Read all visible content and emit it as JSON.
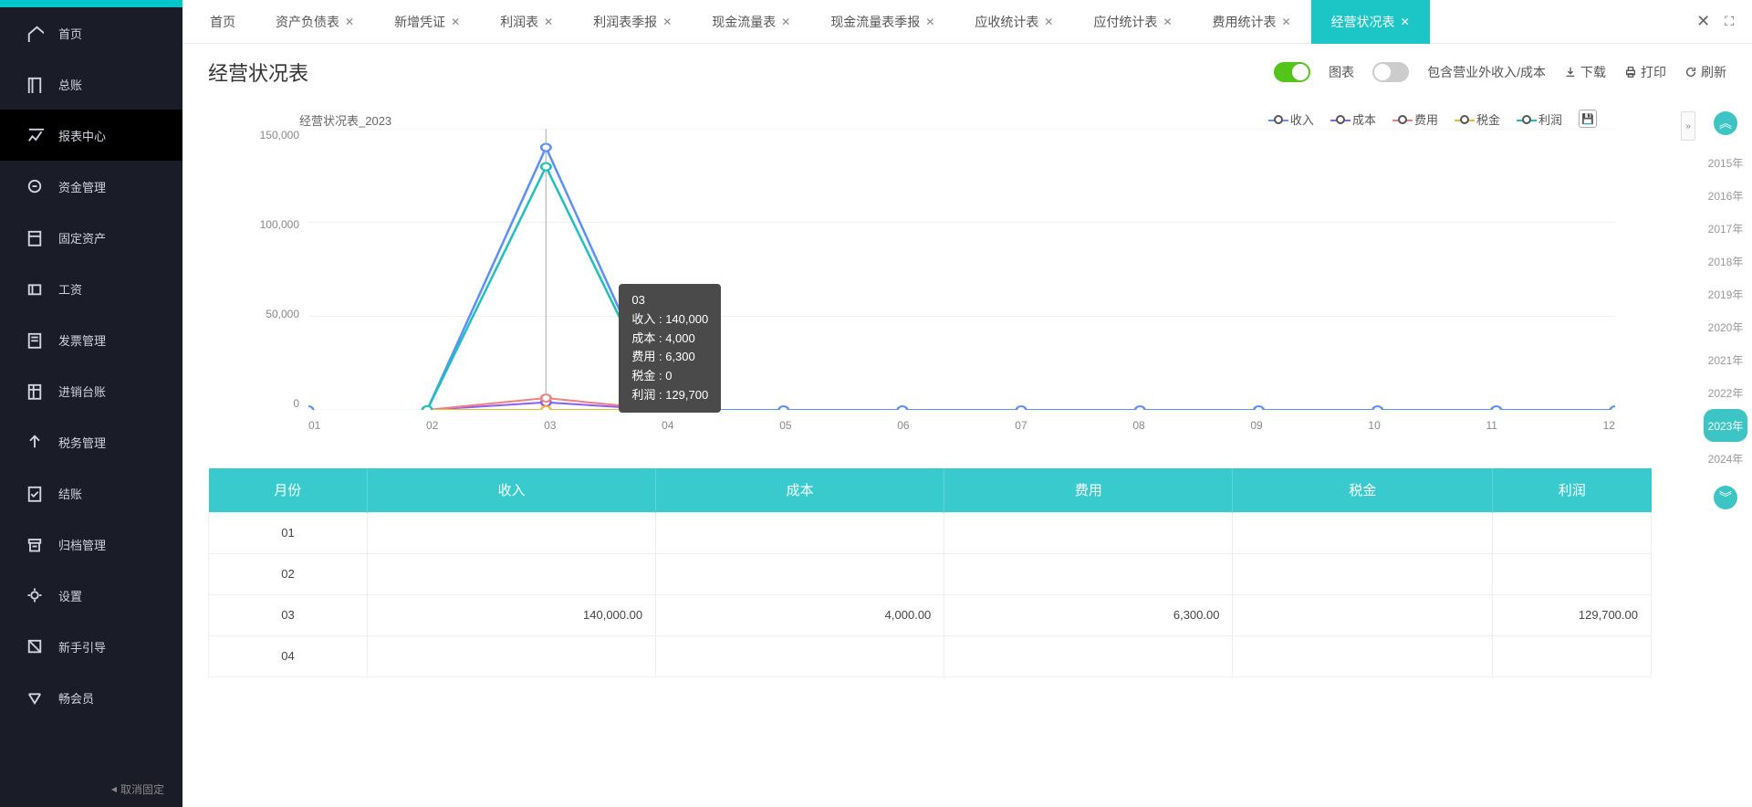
{
  "sidebar": {
    "items": [
      {
        "label": "首页",
        "icon": "home"
      },
      {
        "label": "总账",
        "icon": "ledger"
      },
      {
        "label": "报表中心",
        "icon": "report",
        "active": true
      },
      {
        "label": "资金管理",
        "icon": "money"
      },
      {
        "label": "固定资产",
        "icon": "asset"
      },
      {
        "label": "工资",
        "icon": "salary"
      },
      {
        "label": "发票管理",
        "icon": "invoice"
      },
      {
        "label": "进销台账",
        "icon": "stock"
      },
      {
        "label": "税务管理",
        "icon": "tax"
      },
      {
        "label": "结账",
        "icon": "close"
      },
      {
        "label": "归档管理",
        "icon": "archive"
      },
      {
        "label": "设置",
        "icon": "gear"
      },
      {
        "label": "新手引导",
        "icon": "guide"
      },
      {
        "label": "畅会员",
        "icon": "vip"
      }
    ],
    "footer": "取消固定"
  },
  "tabs": [
    {
      "label": "首页",
      "closable": false
    },
    {
      "label": "资产负债表",
      "closable": true
    },
    {
      "label": "新增凭证",
      "closable": true
    },
    {
      "label": "利润表",
      "closable": true
    },
    {
      "label": "利润表季报",
      "closable": true
    },
    {
      "label": "现金流量表",
      "closable": true
    },
    {
      "label": "现金流量表季报",
      "closable": true
    },
    {
      "label": "应收统计表",
      "closable": true
    },
    {
      "label": "应付统计表",
      "closable": true
    },
    {
      "label": "费用统计表",
      "closable": true
    },
    {
      "label": "经营状况表",
      "closable": true,
      "active": true
    }
  ],
  "page": {
    "title": "经营状况表",
    "toggle1_label": "图表",
    "toggle1_on": true,
    "toggle2_label": "包含营业外收入/成本",
    "toggle2_on": false,
    "download": "下载",
    "print": "打印",
    "refresh": "刷新"
  },
  "chart": {
    "title": "经营状况表_2023",
    "type": "line",
    "x_categories": [
      "01",
      "02",
      "03",
      "04",
      "05",
      "06",
      "07",
      "08",
      "09",
      "10",
      "11",
      "12"
    ],
    "y_ticks": [
      0,
      50000,
      100000,
      150000
    ],
    "y_labels": [
      "0",
      "50,000",
      "100,000",
      "150,000"
    ],
    "ylim": [
      0,
      150000
    ],
    "series": [
      {
        "name": "收入",
        "color": "#5b8ff9",
        "values": [
          null,
          0,
          140000,
          0,
          0,
          0,
          0,
          0,
          0,
          0,
          0,
          0
        ]
      },
      {
        "name": "成本",
        "color": "#8b5cf6",
        "values": [
          null,
          0,
          4000,
          0,
          null,
          null,
          null,
          null,
          null,
          null,
          null,
          null
        ]
      },
      {
        "name": "费用",
        "color": "#f08080",
        "values": [
          null,
          0,
          6300,
          0,
          null,
          null,
          null,
          null,
          null,
          null,
          null,
          null
        ]
      },
      {
        "name": "税金",
        "color": "#f5b72f",
        "values": [
          null,
          0,
          0,
          0,
          null,
          null,
          null,
          null,
          null,
          null,
          null,
          null
        ]
      },
      {
        "name": "利润",
        "color": "#1dbfbf",
        "values": [
          null,
          0,
          129700,
          0,
          null,
          null,
          null,
          null,
          null,
          null,
          null,
          null
        ]
      }
    ],
    "tooltip": {
      "month": "03",
      "rows": [
        {
          "k": "收入",
          "v": "140,000"
        },
        {
          "k": "成本",
          "v": "4,000"
        },
        {
          "k": "费用",
          "v": "6,300"
        },
        {
          "k": "税金",
          "v": "0"
        },
        {
          "k": "利润",
          "v": "129,700"
        }
      ]
    },
    "grid_color": "#eeeeee",
    "background": "#ffffff",
    "marker": "circle",
    "marker_size": 4,
    "line_width": 2
  },
  "table": {
    "columns": [
      "月份",
      "收入",
      "成本",
      "费用",
      "税金",
      "利润"
    ],
    "rows": [
      [
        "01",
        "",
        "",
        "",
        "",
        ""
      ],
      [
        "02",
        "",
        "",
        "",
        "",
        ""
      ],
      [
        "03",
        "140,000.00",
        "4,000.00",
        "6,300.00",
        "",
        "129,700.00"
      ],
      [
        "04",
        "",
        "",
        "",
        "",
        ""
      ]
    ],
    "column_widths": [
      "11%",
      "20%",
      "20%",
      "20%",
      "18%",
      "18%"
    ]
  },
  "years": {
    "list": [
      "2015年",
      "2016年",
      "2017年",
      "2018年",
      "2019年",
      "2020年",
      "2021年",
      "2022年",
      "2023年",
      "2024年"
    ],
    "active": "2023年"
  }
}
